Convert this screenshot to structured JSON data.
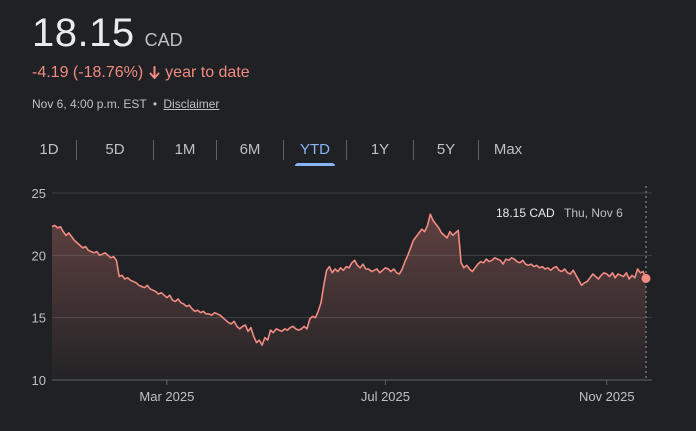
{
  "quote": {
    "price": "18.15",
    "currency": "CAD",
    "change": "-4.19 (-18.76%)",
    "change_period": "year to date",
    "timestamp": "Nov 6, 4:00 p.m. EST",
    "separator": "•",
    "disclaimer": "Disclaimer"
  },
  "tabs": [
    {
      "label": "1D",
      "active": false
    },
    {
      "label": "5D",
      "active": false
    },
    {
      "label": "1M",
      "active": false
    },
    {
      "label": "6M",
      "active": false
    },
    {
      "label": "YTD",
      "active": true
    },
    {
      "label": "1Y",
      "active": false
    },
    {
      "label": "5Y",
      "active": false
    },
    {
      "label": "Max",
      "active": false
    }
  ],
  "tooltip": {
    "price": "18.15 CAD",
    "date": "Thu, Nov 6"
  },
  "colors": {
    "background": "#202124",
    "line": "#f28b82",
    "active_tab": "#8ab4f8",
    "grid": "#3c4043"
  },
  "chart_data": {
    "type": "area",
    "y_ticks": [
      10,
      15,
      20,
      25
    ],
    "ylim": [
      10,
      25
    ],
    "x_tick_labels": [
      {
        "label": "Mar 2025",
        "index": 41
      },
      {
        "label": "Jul 2025",
        "index": 119
      },
      {
        "label": "Nov 2025",
        "index": 198
      }
    ],
    "series": [
      {
        "values": [
          22.3,
          22.4,
          22.2,
          22.3,
          21.9,
          21.6,
          21.8,
          21.5,
          21.2,
          21.0,
          20.8,
          20.6,
          20.7,
          20.4,
          20.3,
          20.2,
          20.3,
          20.0,
          20.1,
          20.2,
          20.0,
          19.8,
          19.9,
          19.6,
          18.3,
          18.4,
          18.1,
          18.2,
          18.0,
          17.9,
          17.8,
          17.6,
          17.5,
          17.4,
          17.6,
          17.3,
          17.2,
          17.1,
          16.9,
          17.0,
          16.8,
          16.6,
          16.8,
          16.4,
          16.3,
          16.5,
          16.2,
          16.1,
          15.9,
          16.0,
          15.7,
          15.5,
          15.6,
          15.4,
          15.5,
          15.3,
          15.3,
          15.2,
          15.4,
          15.3,
          15.2,
          15.0,
          14.8,
          14.6,
          14.5,
          14.7,
          14.3,
          14.1,
          14.3,
          14.4,
          13.9,
          14.2,
          13.5,
          13.0,
          13.2,
          12.8,
          13.4,
          13.2,
          14.0,
          13.8,
          14.1,
          14.0,
          13.9,
          14.1,
          14.0,
          14.2,
          14.3,
          14.1,
          14.0,
          14.1,
          14.3,
          14.1,
          14.9,
          15.1,
          15.0,
          15.5,
          16.2,
          17.6,
          18.8,
          19.1,
          18.6,
          18.9,
          18.7,
          19.0,
          18.8,
          19.1,
          19.0,
          19.4,
          19.6,
          19.2,
          19.0,
          19.3,
          18.9,
          18.9,
          18.7,
          18.8,
          18.9,
          18.6,
          18.8,
          19.0,
          18.9,
          18.7,
          18.9,
          18.6,
          18.5,
          18.9,
          19.5,
          20.0,
          20.6,
          21.2,
          21.5,
          21.8,
          22.1,
          21.9,
          22.4,
          23.3,
          22.8,
          22.5,
          22.2,
          21.8,
          21.6,
          21.4,
          21.9,
          21.6,
          21.8,
          22.0,
          19.4,
          19.0,
          19.2,
          18.9,
          18.7,
          19.0,
          19.3,
          19.5,
          19.4,
          19.7,
          19.5,
          19.6,
          19.8,
          19.7,
          19.6,
          19.3,
          19.7,
          19.6,
          19.8,
          19.7,
          19.5,
          19.4,
          19.6,
          19.3,
          19.2,
          19.3,
          19.1,
          19.2,
          19.0,
          19.1,
          18.9,
          19.0,
          18.8,
          19.0,
          19.1,
          18.8,
          18.7,
          18.9,
          18.6,
          18.5,
          18.8,
          18.4,
          18.0,
          17.6,
          17.8,
          17.9,
          18.2,
          18.5,
          18.3,
          18.1,
          18.4,
          18.6,
          18.5,
          18.3,
          18.6,
          18.2,
          18.5,
          18.4,
          18.3,
          18.6,
          18.1,
          18.4,
          18.2,
          18.9,
          18.6,
          18.7,
          18.15
        ]
      }
    ]
  }
}
